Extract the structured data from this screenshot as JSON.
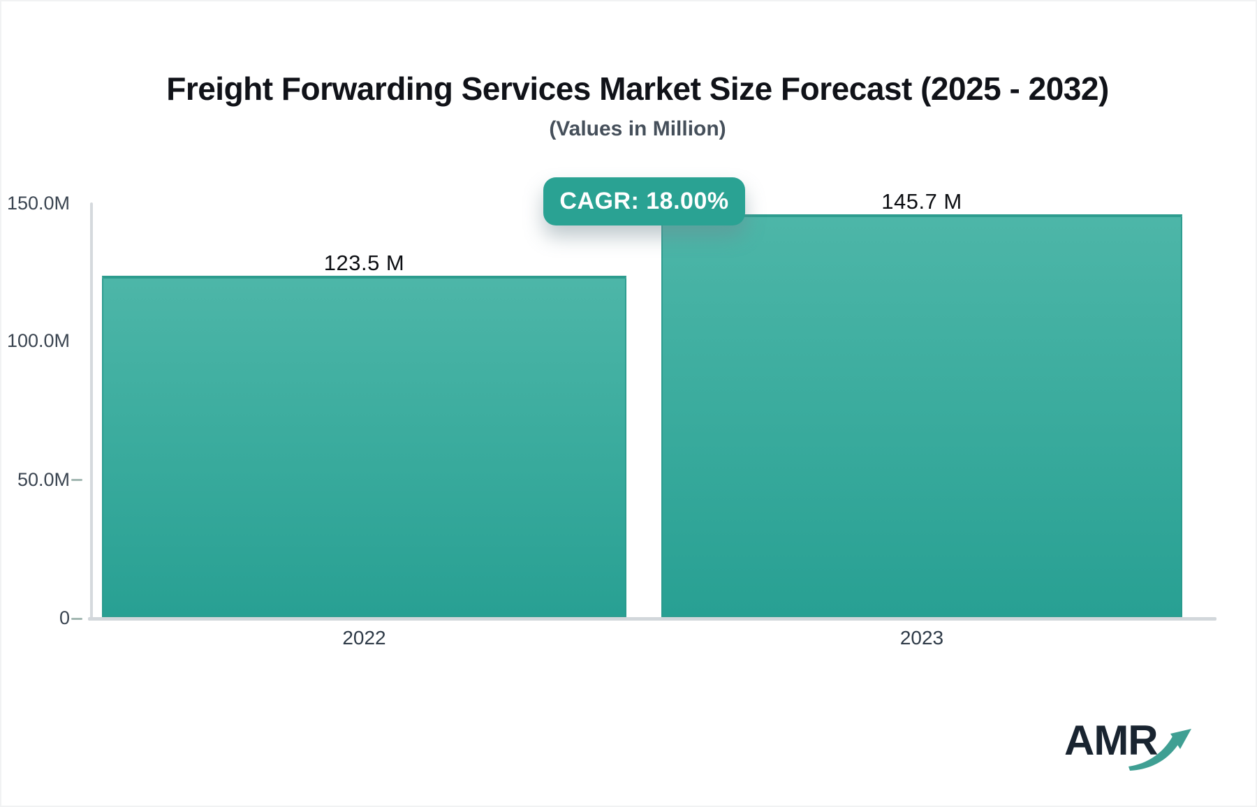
{
  "chart_data": {
    "type": "bar",
    "title": "Freight Forwarding Services Market Size Forecast (2025 - 2032)",
    "subtitle": "(Values in Million)",
    "unit": "Million",
    "categories": [
      "2022",
      "2023"
    ],
    "values": [
      123.5,
      145.7
    ],
    "value_labels": [
      "123.5 M",
      "145.7 M"
    ],
    "ylim": [
      0,
      150
    ],
    "ytick_labels": [
      "150.0M",
      "100.0M",
      "50.0M",
      "0"
    ],
    "grid": false,
    "legend_position": "none",
    "annotations": [
      {
        "type": "badge",
        "label": "CAGR: 18.00%"
      }
    ],
    "colors": {
      "bar_gradient_top": "#4db6a8",
      "bar_gradient_bottom": "#28a093",
      "bar_edge": "#2d9c8e",
      "badge_background": "#2aa293",
      "badge_text": "#ffffff",
      "axis_line": "#d5d9dd",
      "title_text": "#101218",
      "subtitle_text": "#454f5a",
      "tick_text": "#3a4450"
    }
  },
  "branding": {
    "logo_text": "AMR",
    "logo_icon": "growth-arrow-icon",
    "logo_text_color": "#192430",
    "logo_arrow_color": "#3f9f93"
  }
}
